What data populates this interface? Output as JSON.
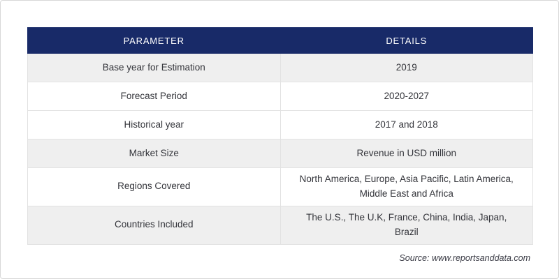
{
  "table": {
    "headers": {
      "parameter": "PARAMETER",
      "details": "DETAILS"
    },
    "rows": [
      {
        "parameter": "Base year for Estimation",
        "details": "2019"
      },
      {
        "parameter": "Forecast Period",
        "details": "2020-2027"
      },
      {
        "parameter": "Historical year",
        "details": "2017 and 2018"
      },
      {
        "parameter": "Market Size",
        "details": "Revenue in USD million"
      },
      {
        "parameter": "Regions Covered",
        "details": "North America, Europe, Asia Pacific, Latin America, Middle East and Africa"
      },
      {
        "parameter": "Countries Included",
        "details": "The U.S., The  U.K, France, China, India, Japan, Brazil"
      }
    ]
  },
  "footer": {
    "source": "Source: www.reportsanddata.com"
  },
  "colors": {
    "header_bg": "#182a68",
    "row_shade": "#efefef",
    "body_text": "#33343a"
  }
}
